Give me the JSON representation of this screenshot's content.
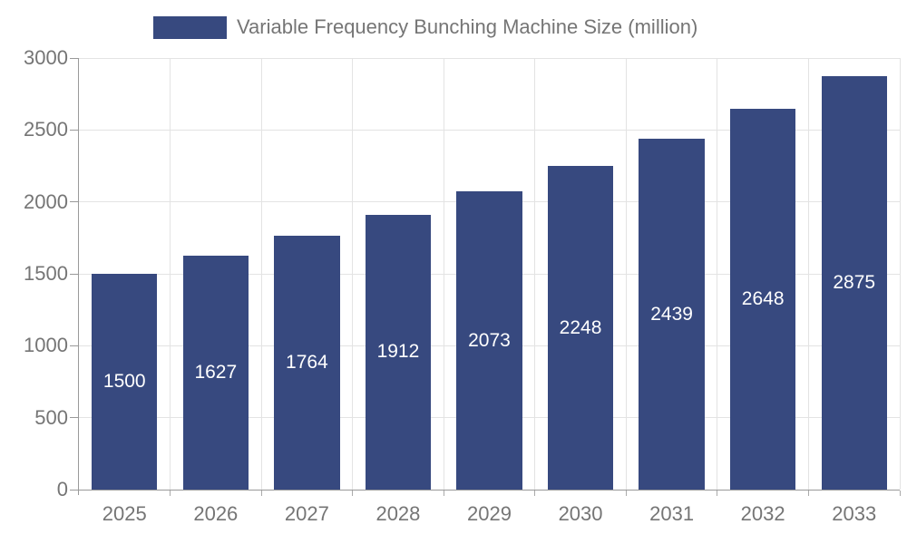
{
  "chart_data": {
    "type": "bar",
    "title": "Variable Frequency Bunching Machine Size (million)",
    "categories": [
      "2025",
      "2026",
      "2027",
      "2028",
      "2029",
      "2030",
      "2031",
      "2032",
      "2033"
    ],
    "values": [
      1500,
      1627,
      1764,
      1912,
      2073,
      2248,
      2439,
      2648,
      2875
    ],
    "xlabel": "",
    "ylabel": "",
    "ylim": [
      0,
      3000
    ],
    "yticks": [
      0,
      500,
      1000,
      1500,
      2000,
      2500,
      3000
    ],
    "grid": true,
    "legend_position": "top",
    "colors": {
      "bar": "#37497F",
      "value_label": "#FFFFFF",
      "axis_text": "#757575",
      "legend_text": "#757575",
      "gridline": "#E3E3E3",
      "axis_line": "#999999",
      "tick": "#AAAAAA"
    }
  }
}
